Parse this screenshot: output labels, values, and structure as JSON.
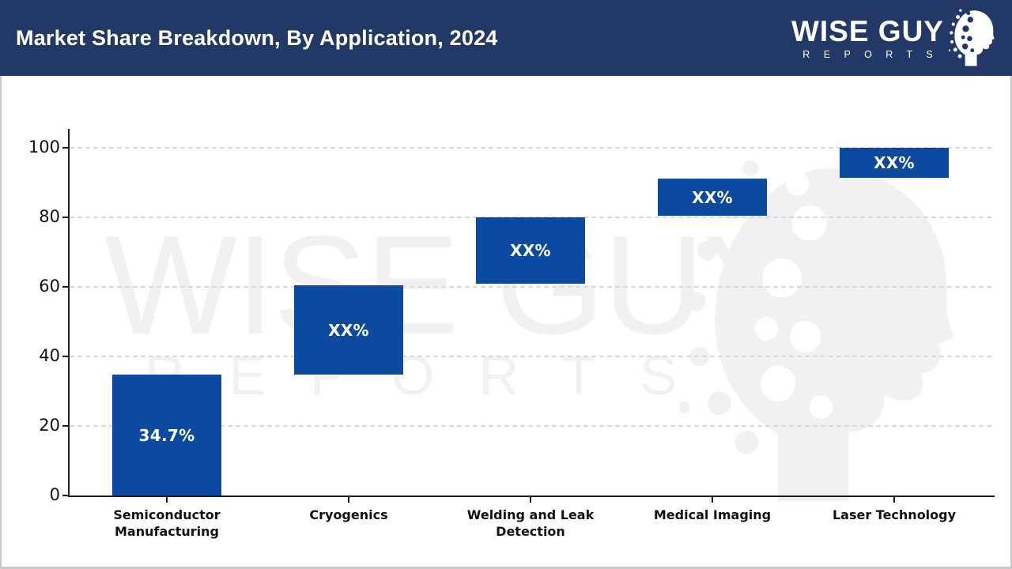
{
  "header": {
    "title": "Market Share Breakdown, By Application, 2024",
    "logo_main": "WISE GUY",
    "logo_sub": "R E P O R T S"
  },
  "watermark": {
    "line1": "WISE GUY",
    "line2": "REPORTS"
  },
  "colors": {
    "header_bg": "#223968",
    "bar_blue": "#0b4a9f",
    "grid_gray": "#d9d9d9",
    "axis_dark": "#1a1a1a",
    "watermark_gray": "#f1f1f3",
    "canvas_border": "#c9c9c9"
  },
  "chart_data": {
    "type": "bar",
    "subtype": "waterfall",
    "title": "Market Share Breakdown, By Application, 2024",
    "xlabel": "",
    "ylabel": "",
    "ylim": [
      0,
      105
    ],
    "yticks": [
      0,
      20,
      40,
      60,
      80,
      100
    ],
    "grid": "horizontal dashed",
    "legend": "none",
    "categories": [
      [
        "Semiconductor",
        "Manufacturing"
      ],
      [
        "Cryogenics"
      ],
      [
        "Welding and Leak",
        "Detection"
      ],
      [
        "Medical Imaging"
      ],
      [
        "Laser Technology"
      ]
    ],
    "segments": [
      {
        "label": "34.7%",
        "start": 0,
        "end": 34.7
      },
      {
        "label": "XX%",
        "start": 34.7,
        "end": 60.5
      },
      {
        "label": "XX%",
        "start": 61,
        "end": 80
      },
      {
        "label": "XX%",
        "start": 80.4,
        "end": 91.1
      },
      {
        "label": "XX%",
        "start": 91.4,
        "end": 100
      }
    ]
  }
}
